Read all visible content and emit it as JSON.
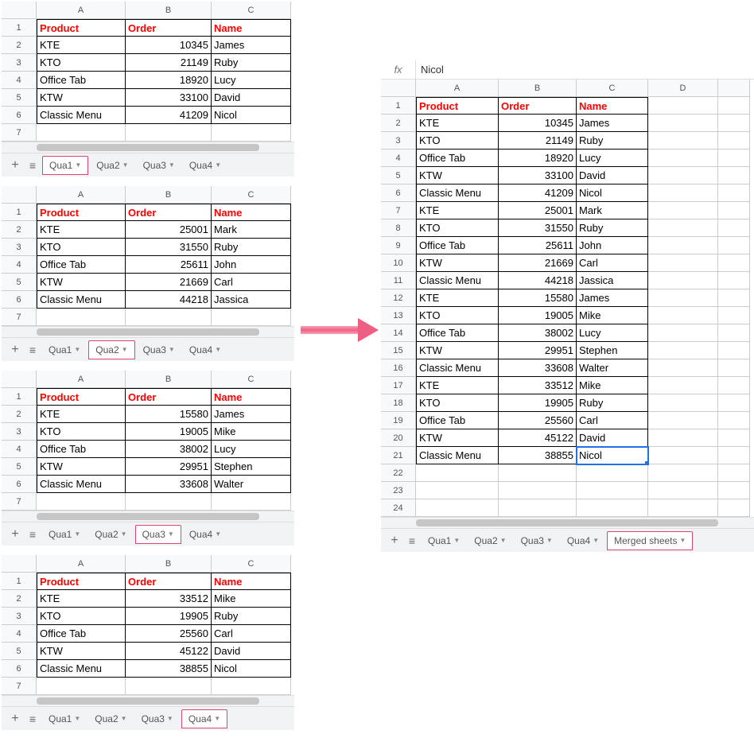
{
  "headers": {
    "product": "Product",
    "order": "Order",
    "name": "Name"
  },
  "col_labels": [
    "A",
    "B",
    "C",
    "D"
  ],
  "mini_col_widths": [
    112,
    108,
    100
  ],
  "big_col_widths": [
    104,
    98,
    90,
    88,
    40
  ],
  "sheets": [
    {
      "active_tab": "Qua1",
      "rows": [
        [
          "KTE",
          "10345",
          "James"
        ],
        [
          "KTO",
          "21149",
          "Ruby"
        ],
        [
          "Office Tab",
          "18920",
          "Lucy"
        ],
        [
          "KTW",
          "33100",
          "David"
        ],
        [
          "Classic Menu",
          "41209",
          "Nicol"
        ]
      ]
    },
    {
      "active_tab": "Qua2",
      "rows": [
        [
          "KTE",
          "25001",
          "Mark"
        ],
        [
          "KTO",
          "31550",
          "Ruby"
        ],
        [
          "Office Tab",
          "25611",
          "John"
        ],
        [
          "KTW",
          "21669",
          "Carl"
        ],
        [
          "Classic Menu",
          "44218",
          "Jassica"
        ]
      ]
    },
    {
      "active_tab": "Qua3",
      "rows": [
        [
          "KTE",
          "15580",
          "James"
        ],
        [
          "KTO",
          "19005",
          "Mike"
        ],
        [
          "Office Tab",
          "38002",
          "Lucy"
        ],
        [
          "KTW",
          "29951",
          "Stephen"
        ],
        [
          "Classic Menu",
          "33608",
          "Walter"
        ]
      ]
    },
    {
      "active_tab": "Qua4",
      "rows": [
        [
          "KTE",
          "33512",
          "Mike"
        ],
        [
          "KTO",
          "19905",
          "Ruby"
        ],
        [
          "Office Tab",
          "25560",
          "Carl"
        ],
        [
          "KTW",
          "45122",
          "David"
        ],
        [
          "Classic Menu",
          "38855",
          "Nicol"
        ]
      ]
    }
  ],
  "mini_tabs": [
    "Qua1",
    "Qua2",
    "Qua3",
    "Qua4"
  ],
  "big": {
    "fx_label": "fx",
    "fx_value": "Nicol",
    "rows": [
      [
        "KTE",
        "10345",
        "James"
      ],
      [
        "KTO",
        "21149",
        "Ruby"
      ],
      [
        "Office Tab",
        "18920",
        "Lucy"
      ],
      [
        "KTW",
        "33100",
        "David"
      ],
      [
        "Classic Menu",
        "41209",
        "Nicol"
      ],
      [
        "KTE",
        "25001",
        "Mark"
      ],
      [
        "KTO",
        "31550",
        "Ruby"
      ],
      [
        "Office Tab",
        "25611",
        "John"
      ],
      [
        "KTW",
        "21669",
        "Carl"
      ],
      [
        "Classic Menu",
        "44218",
        "Jassica"
      ],
      [
        "KTE",
        "15580",
        "James"
      ],
      [
        "KTO",
        "19005",
        "Mike"
      ],
      [
        "Office Tab",
        "38002",
        "Lucy"
      ],
      [
        "KTW",
        "29951",
        "Stephen"
      ],
      [
        "Classic Menu",
        "33608",
        "Walter"
      ],
      [
        "KTE",
        "33512",
        "Mike"
      ],
      [
        "KTO",
        "19905",
        "Ruby"
      ],
      [
        "Office Tab",
        "25560",
        "Carl"
      ],
      [
        "KTW",
        "45122",
        "David"
      ],
      [
        "Classic Menu",
        "38855",
        "Nicol"
      ]
    ],
    "empty_rows": [
      22,
      23,
      24
    ],
    "selected_row": 21,
    "selected_col": 2,
    "tabs": [
      "Qua1",
      "Qua2",
      "Qua3",
      "Qua4",
      "Merged sheets"
    ],
    "highlight_tab": "Merged sheets"
  },
  "colors": {
    "header_text": "#ff0000",
    "cell_border_dark": "#000000",
    "grid_border": "#cccccc",
    "tab_highlight_border": "#d9466f",
    "arrow": "#ef5f84",
    "selection": "#1a73e8"
  }
}
